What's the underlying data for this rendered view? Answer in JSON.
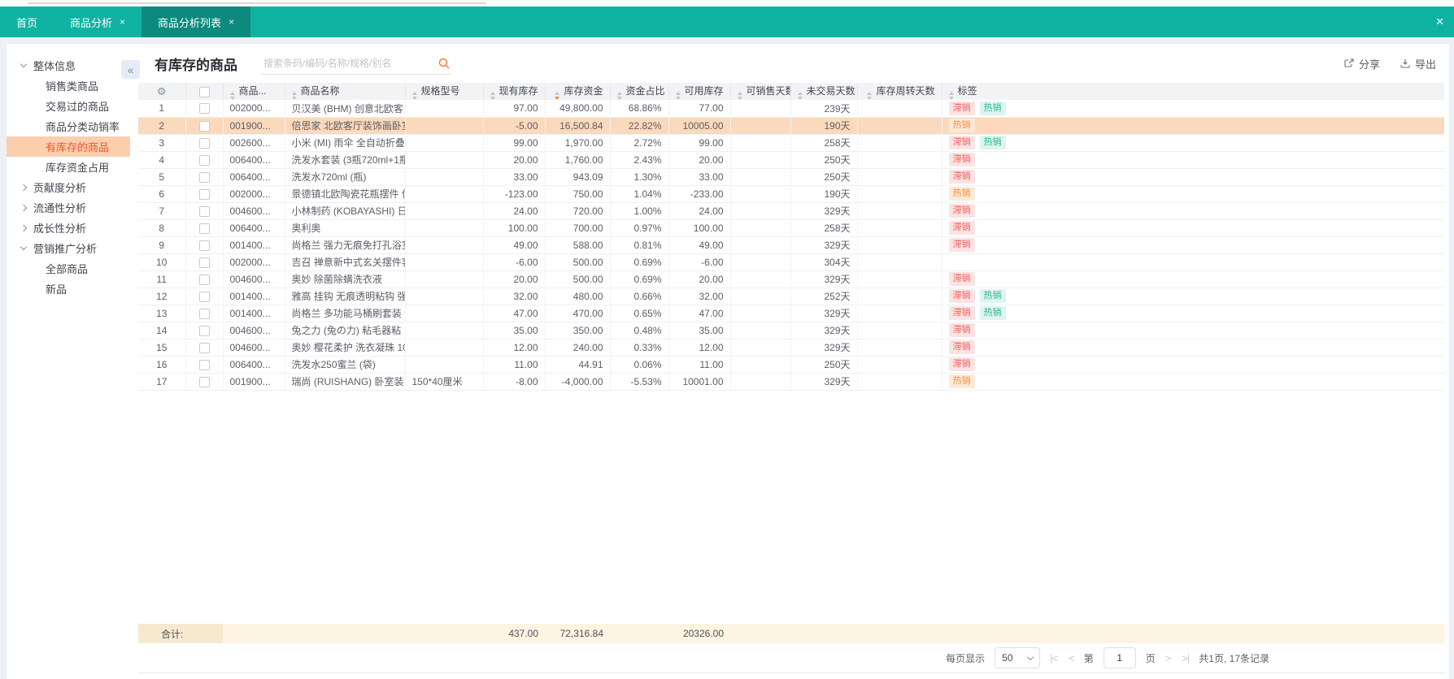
{
  "topbar": {
    "tabs": [
      {
        "id": "home",
        "label": "首页",
        "closable": false,
        "active": false
      },
      {
        "id": "product-analysis",
        "label": "商品分析",
        "closable": true,
        "active": false
      },
      {
        "id": "product-analysis-list",
        "label": "商品分析列表",
        "closable": true,
        "active": true
      }
    ],
    "close_icon": "✕",
    "accent_color": "#10b3a2",
    "active_tab_color": "#0c8a7e"
  },
  "sidebar": {
    "collapse_icon": "«",
    "active_bg": "#fbcfad",
    "active_text": "#f1562c",
    "tree": [
      {
        "label": "整体信息",
        "level": 0,
        "caret": "down",
        "active": false
      },
      {
        "label": "销售类商品",
        "level": 1,
        "active": false
      },
      {
        "label": "交易过的商品",
        "level": 1,
        "active": false
      },
      {
        "label": "商品分类动销率",
        "level": 1,
        "active": false
      },
      {
        "label": "有库存的商品",
        "level": 1,
        "active": true
      },
      {
        "label": "库存资金占用",
        "level": 1,
        "active": false
      },
      {
        "label": "贡献度分析",
        "level": 0,
        "caret": "right",
        "active": false
      },
      {
        "label": "流通性分析",
        "level": 0,
        "caret": "right",
        "active": false
      },
      {
        "label": "成长性分析",
        "level": 0,
        "caret": "right",
        "active": false
      },
      {
        "label": "营销推广分析",
        "level": 0,
        "caret": "down",
        "active": false
      },
      {
        "label": "全部商品",
        "level": 1,
        "active": false
      },
      {
        "label": "新品",
        "level": 1,
        "active": false
      }
    ]
  },
  "header": {
    "title": "有库存的商品",
    "search_placeholder": "搜索条码/编码/名称/规格/别名",
    "share_label": "分享",
    "export_label": "导出"
  },
  "table": {
    "columns": [
      {
        "key": "code",
        "label": "商品...",
        "num": false
      },
      {
        "key": "name",
        "label": "商品名称",
        "num": false
      },
      {
        "key": "spec",
        "label": "规格型号",
        "num": false
      },
      {
        "key": "stock",
        "label": "现有库存",
        "num": true
      },
      {
        "key": "fund",
        "label": "库存资金",
        "num": true,
        "sorted": "desc"
      },
      {
        "key": "ratio",
        "label": "资金占比",
        "num": true
      },
      {
        "key": "avail",
        "label": "可用库存",
        "num": true
      },
      {
        "key": "sale-days",
        "label": "可销售天数",
        "num": true
      },
      {
        "key": "no-trade-days",
        "label": "未交易天数",
        "num": true
      },
      {
        "key": "turnover-days",
        "label": "库存周转天数",
        "num": true
      },
      {
        "key": "tags",
        "label": "标签",
        "num": false
      }
    ],
    "sorted": {
      "column": "库存资金",
      "direction": "desc"
    },
    "highlight_row_color": "#fbd9bd",
    "rows": [
      {
        "num": "1",
        "code": "002000...",
        "name": "贝汉美 (BHM) 创意北欧客",
        "spec": "",
        "stock": "97.00",
        "fund": "49,800.00",
        "ratio": "68.86%",
        "avail": "77.00",
        "sale_days": "",
        "no_trade_days": "239天",
        "turnover_days": "",
        "highlighted": false,
        "tags": [
          {
            "text": "滞销",
            "color": "red"
          },
          {
            "text": "热销",
            "color": "teal"
          }
        ]
      },
      {
        "num": "2",
        "code": "001900...",
        "name": "倍思家 北欧客厅装饰画卧室",
        "spec": "",
        "stock": "-5.00",
        "fund": "16,500.84",
        "ratio": "22.82%",
        "avail": "10005.00",
        "sale_days": "",
        "no_trade_days": "190天",
        "turnover_days": "",
        "highlighted": true,
        "tags": [
          {
            "text": "热销",
            "color": "orange"
          }
        ]
      },
      {
        "num": "3",
        "code": "002600...",
        "name": "小米 (MI) 雨伞 全自动折叠",
        "spec": "",
        "stock": "99.00",
        "fund": "1,970.00",
        "ratio": "2.72%",
        "avail": "99.00",
        "sale_days": "",
        "no_trade_days": "258天",
        "turnover_days": "",
        "highlighted": false,
        "tags": [
          {
            "text": "滞销",
            "color": "red"
          },
          {
            "text": "热销",
            "color": "teal"
          }
        ]
      },
      {
        "num": "4",
        "code": "006400...",
        "name": "洗发水套装 (3瓶720ml+1瓶",
        "spec": "",
        "stock": "20.00",
        "fund": "1,760.00",
        "ratio": "2.43%",
        "avail": "20.00",
        "sale_days": "",
        "no_trade_days": "250天",
        "turnover_days": "",
        "highlighted": false,
        "tags": [
          {
            "text": "滞销",
            "color": "red"
          }
        ]
      },
      {
        "num": "5",
        "code": "006400...",
        "name": "洗发水720ml (瓶)",
        "spec": "",
        "stock": "33.00",
        "fund": "943.09",
        "ratio": "1.30%",
        "avail": "33.00",
        "sale_days": "",
        "no_trade_days": "250天",
        "turnover_days": "",
        "highlighted": false,
        "tags": [
          {
            "text": "滞销",
            "color": "red"
          }
        ]
      },
      {
        "num": "6",
        "code": "002000...",
        "name": "景德镇北欧陶瓷花瓶摆件 仿",
        "spec": "",
        "stock": "-123.00",
        "fund": "750.00",
        "ratio": "1.04%",
        "avail": "-233.00",
        "sale_days": "",
        "no_trade_days": "190天",
        "turnover_days": "",
        "highlighted": false,
        "tags": [
          {
            "text": "热销",
            "color": "orange"
          }
        ]
      },
      {
        "num": "7",
        "code": "004600...",
        "name": "小林制药 (KOBAYASHI) 日",
        "spec": "",
        "stock": "24.00",
        "fund": "720.00",
        "ratio": "1.00%",
        "avail": "24.00",
        "sale_days": "",
        "no_trade_days": "329天",
        "turnover_days": "",
        "highlighted": false,
        "tags": [
          {
            "text": "滞销",
            "color": "red"
          }
        ]
      },
      {
        "num": "8",
        "code": "006400...",
        "name": "奥利奥",
        "spec": "",
        "stock": "100.00",
        "fund": "700.00",
        "ratio": "0.97%",
        "avail": "100.00",
        "sale_days": "",
        "no_trade_days": "258天",
        "turnover_days": "",
        "highlighted": false,
        "tags": [
          {
            "text": "滞销",
            "color": "red"
          }
        ]
      },
      {
        "num": "9",
        "code": "001400...",
        "name": "尚格兰 强力无痕免打孔浴室",
        "spec": "",
        "stock": "49.00",
        "fund": "588.00",
        "ratio": "0.81%",
        "avail": "49.00",
        "sale_days": "",
        "no_trade_days": "329天",
        "turnover_days": "",
        "highlighted": false,
        "tags": [
          {
            "text": "滞销",
            "color": "red"
          }
        ]
      },
      {
        "num": "10",
        "code": "002000...",
        "name": "吉召 禅意新中式玄关摆件客",
        "spec": "",
        "stock": "-6.00",
        "fund": "500.00",
        "ratio": "0.69%",
        "avail": "-6.00",
        "sale_days": "",
        "no_trade_days": "304天",
        "turnover_days": "",
        "highlighted": false,
        "tags": []
      },
      {
        "num": "11",
        "code": "004600...",
        "name": "奥妙 除菌除螨洗衣液",
        "spec": "",
        "stock": "20.00",
        "fund": "500.00",
        "ratio": "0.69%",
        "avail": "20.00",
        "sale_days": "",
        "no_trade_days": "329天",
        "turnover_days": "",
        "highlighted": false,
        "tags": [
          {
            "text": "滞销",
            "color": "red"
          }
        ]
      },
      {
        "num": "12",
        "code": "001400...",
        "name": "雅高 挂钩 无痕透明粘钩 强",
        "spec": "",
        "stock": "32.00",
        "fund": "480.00",
        "ratio": "0.66%",
        "avail": "32.00",
        "sale_days": "",
        "no_trade_days": "252天",
        "turnover_days": "",
        "highlighted": false,
        "tags": [
          {
            "text": "滞销",
            "color": "red"
          },
          {
            "text": "热销",
            "color": "teal"
          }
        ]
      },
      {
        "num": "13",
        "code": "001400...",
        "name": "尚格兰 多功能马桶刷套装 无",
        "spec": "",
        "stock": "47.00",
        "fund": "470.00",
        "ratio": "0.65%",
        "avail": "47.00",
        "sale_days": "",
        "no_trade_days": "329天",
        "turnover_days": "",
        "highlighted": false,
        "tags": [
          {
            "text": "滞销",
            "color": "red"
          },
          {
            "text": "热销",
            "color": "teal"
          }
        ]
      },
      {
        "num": "14",
        "code": "004600...",
        "name": "兔之力 (兔の力) 粘毛器粘",
        "spec": "",
        "stock": "35.00",
        "fund": "350.00",
        "ratio": "0.48%",
        "avail": "35.00",
        "sale_days": "",
        "no_trade_days": "329天",
        "turnover_days": "",
        "highlighted": false,
        "tags": [
          {
            "text": "滞销",
            "color": "red"
          }
        ]
      },
      {
        "num": "15",
        "code": "004600...",
        "name": "奥妙 樱花柔护 洗衣凝珠 10",
        "spec": "",
        "stock": "12.00",
        "fund": "240.00",
        "ratio": "0.33%",
        "avail": "12.00",
        "sale_days": "",
        "no_trade_days": "329天",
        "turnover_days": "",
        "highlighted": false,
        "tags": [
          {
            "text": "滞销",
            "color": "red"
          }
        ]
      },
      {
        "num": "16",
        "code": "006400...",
        "name": "洗发水250蜜兰 (袋)",
        "spec": "",
        "stock": "11.00",
        "fund": "44.91",
        "ratio": "0.06%",
        "avail": "11.00",
        "sale_days": "",
        "no_trade_days": "250天",
        "turnover_days": "",
        "highlighted": false,
        "tags": [
          {
            "text": "滞销",
            "color": "red"
          }
        ]
      },
      {
        "num": "17",
        "code": "001900...",
        "name": "瑞尚 (RUISHANG) 卧室装",
        "spec": "150*40厘米",
        "stock": "-8.00",
        "fund": "-4,000.00",
        "ratio": "-5.53%",
        "avail": "10001.00",
        "sale_days": "",
        "no_trade_days": "329天",
        "turnover_days": "",
        "highlighted": false,
        "tags": [
          {
            "text": "热销",
            "color": "orange"
          }
        ]
      }
    ],
    "totals": {
      "label": "合计:",
      "stock": "437.00",
      "fund": "72,316.84",
      "avail": "20326.00"
    }
  },
  "pagination": {
    "per_page_label": "每页显示",
    "per_page": "50",
    "icons": {
      "first": "|<",
      "prev": "<",
      "next": ">",
      "last": ">|"
    },
    "page_label_before": "第",
    "page_value": "1",
    "page_label_after": "页",
    "summary": "共1页, 17条记录"
  }
}
